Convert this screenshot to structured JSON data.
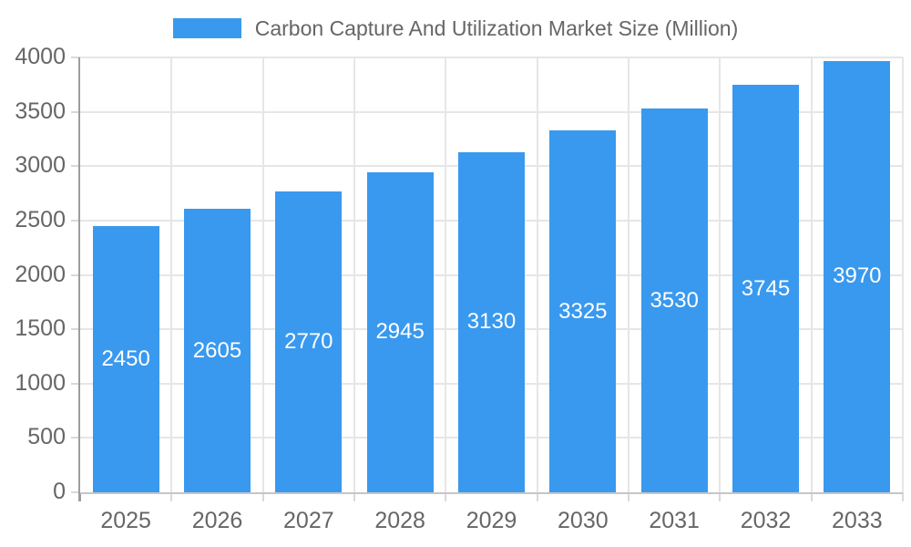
{
  "legend": {
    "label": "Carbon Capture And Utilization Market Size (Million)"
  },
  "chart_data": {
    "type": "bar",
    "title": "Carbon Capture And Utilization Market Size (Million)",
    "categories": [
      "2025",
      "2026",
      "2027",
      "2028",
      "2029",
      "2030",
      "2031",
      "2032",
      "2033"
    ],
    "values": [
      2450,
      2605,
      2770,
      2945,
      3130,
      3325,
      3530,
      3745,
      3970
    ],
    "xlabel": "",
    "ylabel": "",
    "ylim": [
      0,
      4000
    ],
    "yticks": [
      0,
      500,
      1000,
      1500,
      2000,
      2500,
      3000,
      3500,
      4000
    ],
    "grid": true,
    "legend_position": "top-center",
    "bar_labels_inside": true,
    "colors": {
      "bar": "#3999EF",
      "bar_label": "#FFFFFF",
      "axis_text": "#666666",
      "grid_line": "#E6E6E6",
      "y_axis_line": "#9C9C9C",
      "x_axis_line": "#C6C6C6",
      "tick_mark": "#D9D9D9",
      "background": "#FFFFFF"
    }
  }
}
